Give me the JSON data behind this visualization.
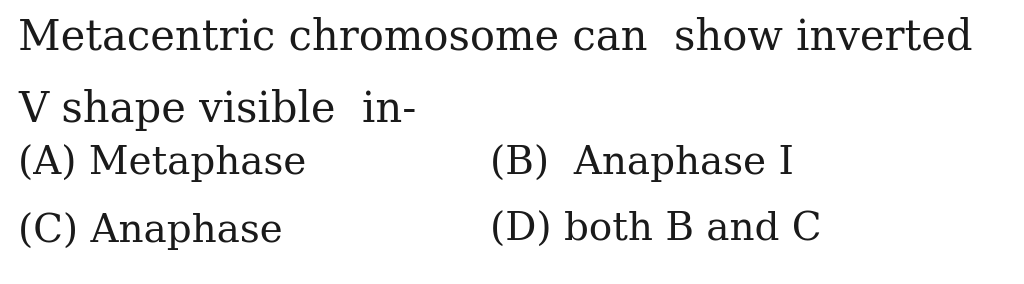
{
  "background_color": "#ffffff",
  "line1": "Metacentric chromosome can  show inverted",
  "line2": "V shape visible  in-",
  "option_A_label": "(A) Metaphase",
  "option_B_label": "(B)  Anaphase I",
  "option_C_label": "(C) Anaphase",
  "option_D_label": "(D) both B and C",
  "text_color": "#1a1a1a",
  "font_size_question": 30,
  "font_size_options": 28,
  "font_family": "DejaVu Serif"
}
